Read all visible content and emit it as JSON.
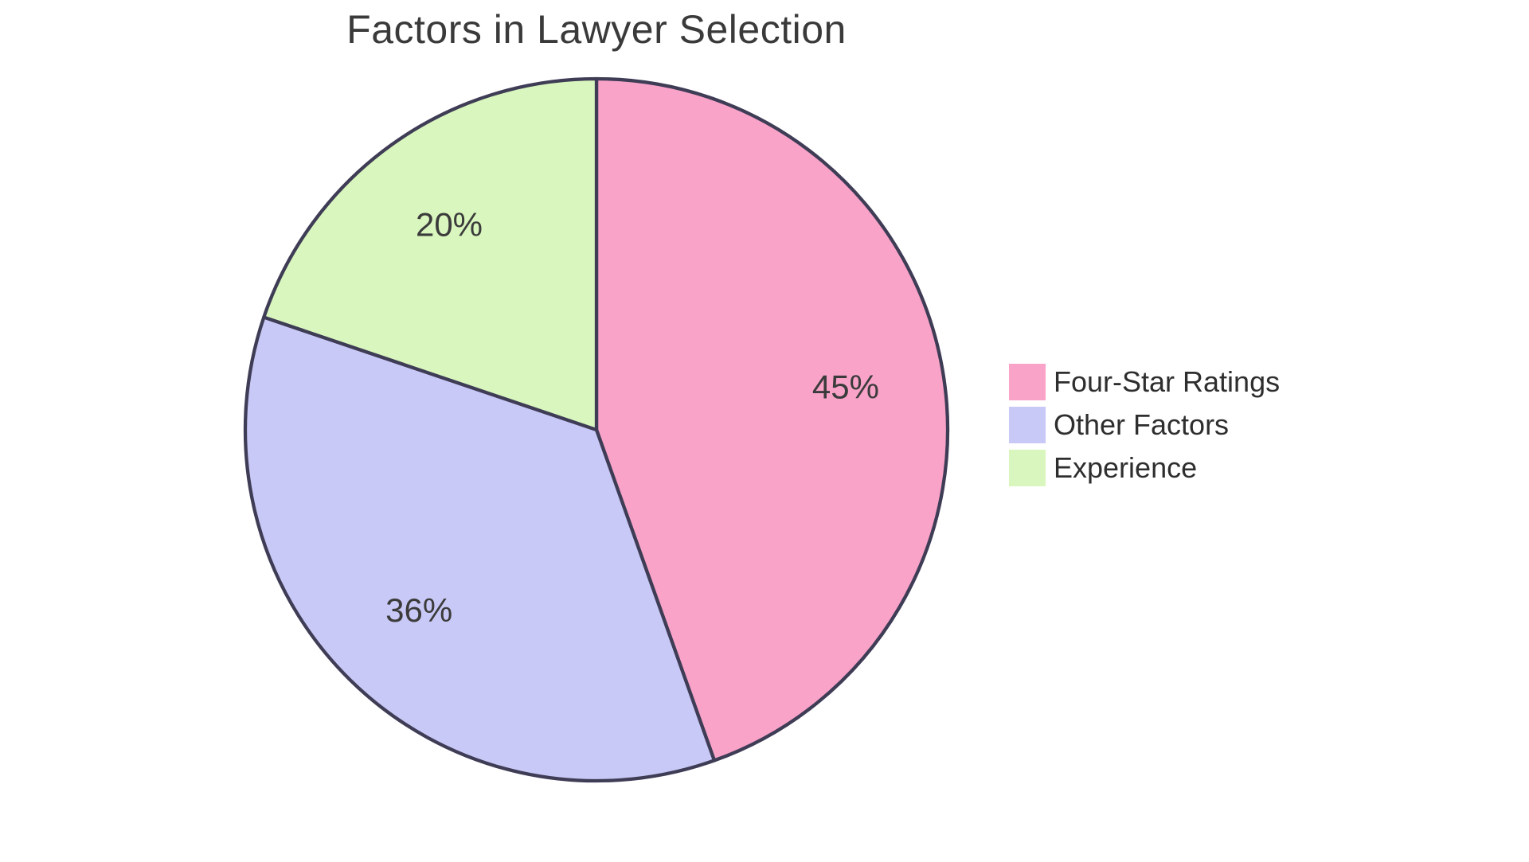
{
  "chart_data": {
    "type": "pie",
    "title": "Factors in Lawyer Selection",
    "slices": [
      {
        "label": "Four-Star Ratings",
        "value": 45,
        "display_pct": "45%",
        "color": "#F9A3C9"
      },
      {
        "label": "Other Factors",
        "value": 36,
        "display_pct": "36%",
        "color": "#C9C9F7"
      },
      {
        "label": "Experience",
        "value": 20,
        "display_pct": "20%",
        "color": "#D9F6BE"
      }
    ],
    "start_angle": "top",
    "direction": "clockwise",
    "stroke_color": "#3F3D56",
    "stroke_width": 4.3,
    "label_color": "#3B3B3B",
    "background_color": "#FFFFFF",
    "legend_position": "right",
    "grid": false
  }
}
